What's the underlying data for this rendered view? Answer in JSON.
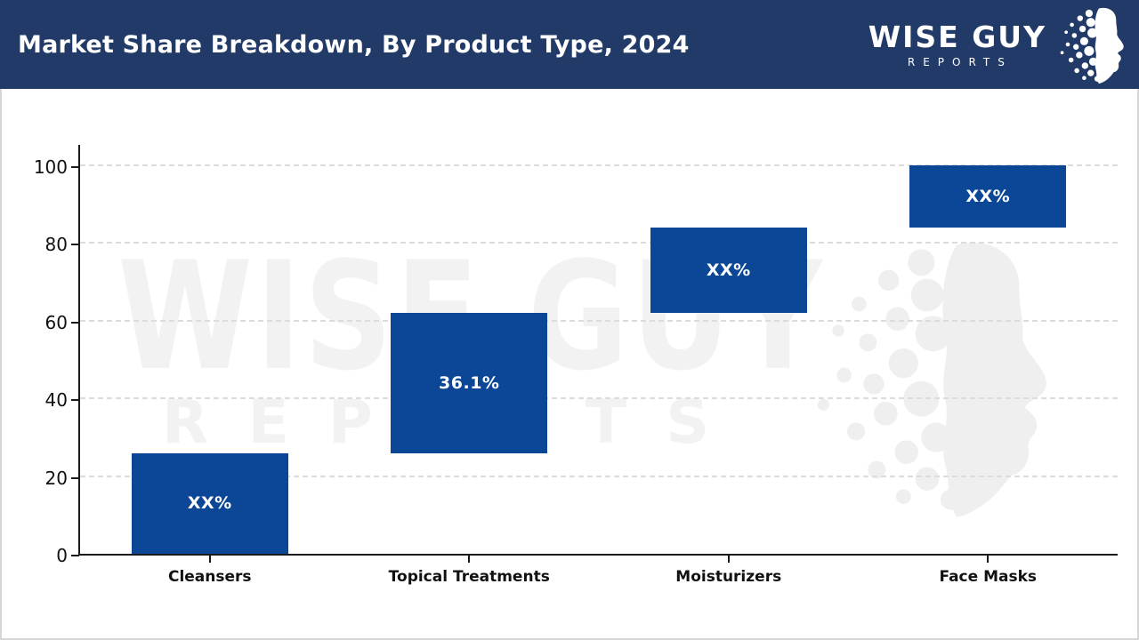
{
  "header": {
    "title": "Market Share Breakdown, By Product Type, 2024",
    "bg_color": "#213A67",
    "logo": {
      "line1": "WISE GUY",
      "line2": "REPORTS",
      "face_icon": "dotted-head-profile-icon"
    }
  },
  "watermark": {
    "line1": "WISE GUY",
    "line2": "REPORTS",
    "face_icon": "dotted-head-profile-icon"
  },
  "chart_data": {
    "type": "bar",
    "subtype": "floating-waterfall",
    "title": "Market Share Breakdown, By Product Type, 2024",
    "xlabel": "",
    "ylabel": "",
    "categories": [
      "Cleansers",
      "Topical Treatments",
      "Moisturizers",
      "Face Masks"
    ],
    "segments": [
      {
        "category": "Cleansers",
        "start": 0,
        "end": 25.9,
        "value": 25.9,
        "label": "XX%"
      },
      {
        "category": "Topical Treatments",
        "start": 25.9,
        "end": 62.0,
        "value": 36.1,
        "label": "36.1%"
      },
      {
        "category": "Moisturizers",
        "start": 62.0,
        "end": 83.9,
        "value": 21.9,
        "label": "XX%"
      },
      {
        "category": "Face Masks",
        "start": 83.9,
        "end": 100.0,
        "value": 16.1,
        "label": "XX%"
      }
    ],
    "ylim": [
      0,
      100
    ],
    "yticks": [
      0,
      20,
      40,
      60,
      80,
      100
    ],
    "bar_color": "#0B4796",
    "bar_label_color": "#ffffff",
    "grid": "dashed-horizontal",
    "legend": "none"
  }
}
